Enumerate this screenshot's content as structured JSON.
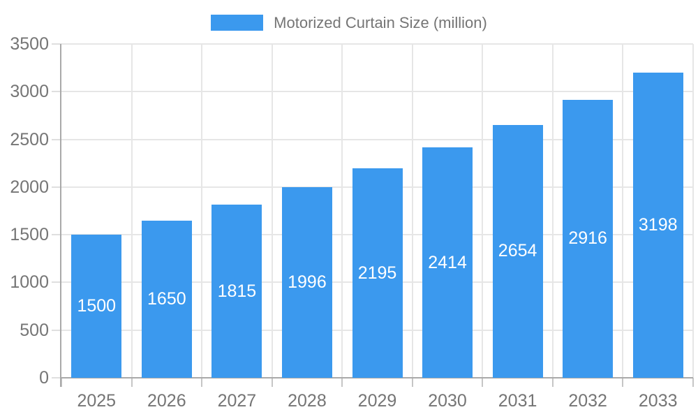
{
  "chart_data": {
    "type": "bar",
    "title": "Motorized Curtain Size (million)",
    "categories": [
      "2025",
      "2026",
      "2027",
      "2028",
      "2029",
      "2030",
      "2031",
      "2032",
      "2033"
    ],
    "values": [
      1500,
      1650,
      1815,
      1996,
      2195,
      2414,
      2654,
      2916,
      3198
    ],
    "xlabel": "",
    "ylabel": "",
    "ylim": [
      0,
      3500
    ],
    "yticks": [
      0,
      500,
      1000,
      1500,
      2000,
      2500,
      3000,
      3500
    ],
    "grid": true,
    "legend_position": "top-center",
    "bar_color": "#3B99EE",
    "bar_label_color": "#FFFFFF",
    "axis_text_color": "#757575",
    "gridline_color": "#E6E6E6",
    "axis_line_color": "#A9A9A9",
    "tick_color": "#C6C6C6"
  }
}
